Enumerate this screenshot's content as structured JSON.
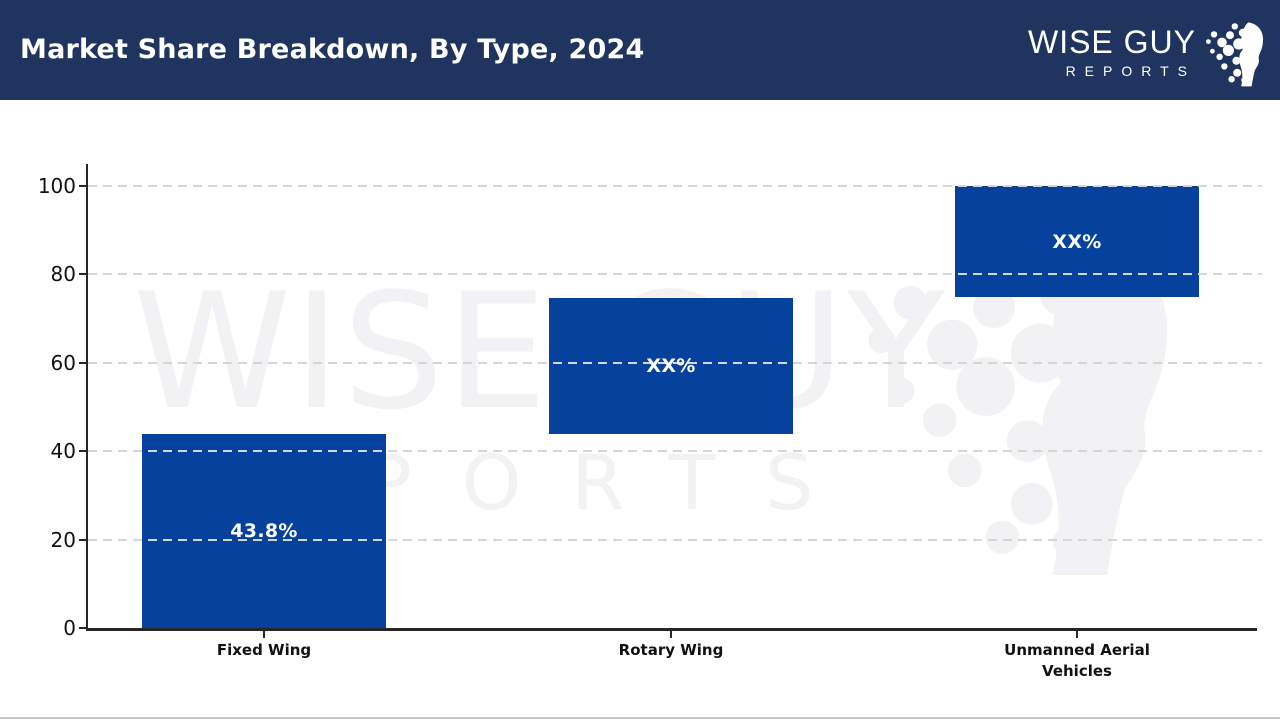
{
  "header": {
    "title": "Market Share Breakdown, By Type, 2024",
    "logo": {
      "line1": "WISE GUY",
      "line2": "REPORTS"
    }
  },
  "watermark": {
    "line1": "WISE GUY",
    "line2": "REPORTS"
  },
  "chart_data": {
    "type": "bar",
    "variant": "stacked-waterfall-segments",
    "title": "Market Share Breakdown, By Type, 2024",
    "categories": [
      "Fixed Wing",
      "Rotary Wing",
      "Unmanned Aerial Vehicles"
    ],
    "series": [
      {
        "category": "Fixed Wing",
        "start": 0,
        "end": 43.8,
        "label": "43.8%"
      },
      {
        "category": "Rotary Wing",
        "start": 43.8,
        "end": 74.6,
        "label": "XX%"
      },
      {
        "category": "Unmanned Aerial Vehicles",
        "start": 74.8,
        "end": 100,
        "label": "XX%"
      }
    ],
    "xlabel": "",
    "ylabel": "",
    "ylim": [
      0,
      100
    ],
    "yticks": [
      0,
      20,
      40,
      60,
      80,
      100
    ],
    "grid": "dashed horizontal, drawn above bars",
    "legend": "none",
    "bar_color": "#05419d",
    "bar_value_label_color": "#ffffff"
  },
  "colors": {
    "header_bg": "#1f3560",
    "bar": "#05419d",
    "grid": "#d6d6d6",
    "axis": "#262626",
    "watermark": "#f2f2f4",
    "bottom_rule": "#c6c6c6"
  }
}
